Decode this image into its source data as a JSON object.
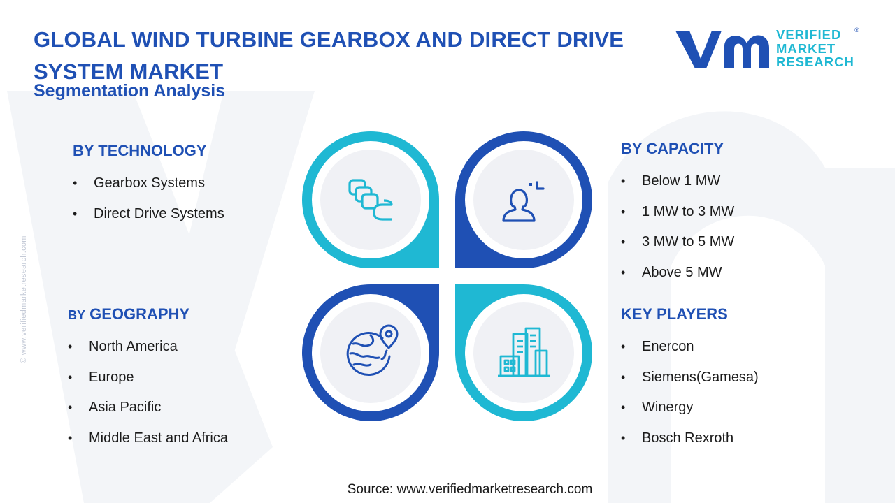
{
  "header": {
    "title_line1": "GLOBAL WIND TURBINE GEARBOX AND DIRECT DRIVE",
    "title_line2": "SYSTEM MARKET",
    "subtitle": "Segmentation Analysis"
  },
  "logo": {
    "line1": "VERIFIED",
    "line2": "MARKET",
    "line3": "RESEARCH",
    "registered": "®"
  },
  "side_text": "© www.verifiedmarketresearch.com",
  "segments": {
    "technology": {
      "heading": "BY TECHNOLOGY",
      "items": [
        "Gearbox Systems",
        "Direct Drive Systems"
      ]
    },
    "capacity": {
      "heading": "BY CAPACITY",
      "items": [
        "Below 1 MW",
        "1 MW to 3 MW",
        "3 MW to 5 MW",
        "Above 5 MW"
      ]
    },
    "geography": {
      "heading_prefix": "BY",
      "heading_main": "GEOGRAPHY",
      "items": [
        "North America",
        "Europe",
        "Asia Pacific",
        "Middle East and Africa"
      ]
    },
    "key_players": {
      "heading": "KEY PLAYERS",
      "items": [
        "Enercon",
        "Siemens(Gamesa)",
        "Winergy",
        "Bosch Rexroth"
      ]
    }
  },
  "diagram": {
    "icons": {
      "top_left": "gears-stack-icon",
      "top_right": "user-focus-icon",
      "bottom_left": "globe-location-icon",
      "bottom_right": "buildings-icon"
    }
  },
  "source": "Source: www.verifiedmarketresearch.com",
  "colors": {
    "dark_blue": "#1f50b4",
    "cyan": "#1fb8d3",
    "circle_fill": "#f0f1f5"
  }
}
